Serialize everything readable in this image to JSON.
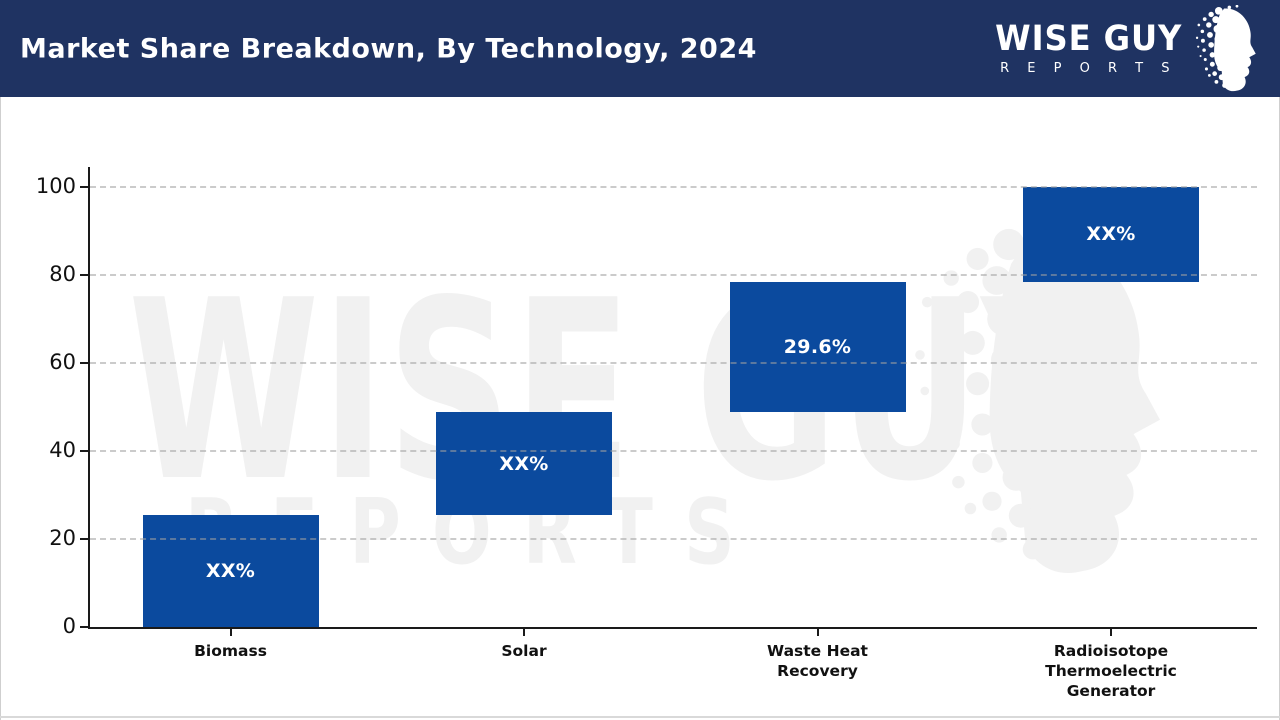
{
  "header": {
    "title": "Market Share Breakdown, By Technology, 2024",
    "brand_line1": "WISE GUY",
    "brand_line2": "R E P O R T S"
  },
  "watermark": {
    "line1": "WISE GUY",
    "line2": "REPORTS"
  },
  "colors": {
    "header_bg": "#1f3362",
    "bar_fill": "#0b4a9e",
    "grid_line": "#c9c9c9",
    "axis": "#1a1a1a",
    "watermark": "#f1f1f1",
    "bar_label_text": "#ffffff"
  },
  "chart_data": {
    "type": "bar",
    "subtype": "floating-waterfall",
    "title": "Market Share Breakdown, By Technology, 2024",
    "xlabel": "",
    "ylabel": "",
    "ylim": [
      0,
      105
    ],
    "y_ticks": [
      0,
      20,
      40,
      60,
      80,
      100
    ],
    "grid": "horizontal-dashed",
    "legend_position": "none",
    "categories": [
      "Biomass",
      "Solar",
      "Waste Heat Recovery",
      "Radioisotope Thermoelectric Generator"
    ],
    "segments": [
      {
        "category": "Biomass",
        "label_lines": [
          "Biomass"
        ],
        "start": 0,
        "end": 25.4,
        "value": 25.4,
        "data_label": "XX%"
      },
      {
        "category": "Solar",
        "label_lines": [
          "Solar"
        ],
        "start": 25.4,
        "end": 48.9,
        "value": 23.5,
        "data_label": "XX%"
      },
      {
        "category": "Waste Heat Recovery",
        "label_lines": [
          "Waste Heat",
          "Recovery"
        ],
        "start": 48.9,
        "end": 78.5,
        "value": 29.6,
        "data_label": "29.6%"
      },
      {
        "category": "Radioisotope Thermoelectric Generator",
        "label_lines": [
          "Radioisotope",
          "Thermoelectric",
          "Generator"
        ],
        "start": 78.5,
        "end": 100,
        "value": 21.5,
        "data_label": "XX%"
      }
    ]
  }
}
